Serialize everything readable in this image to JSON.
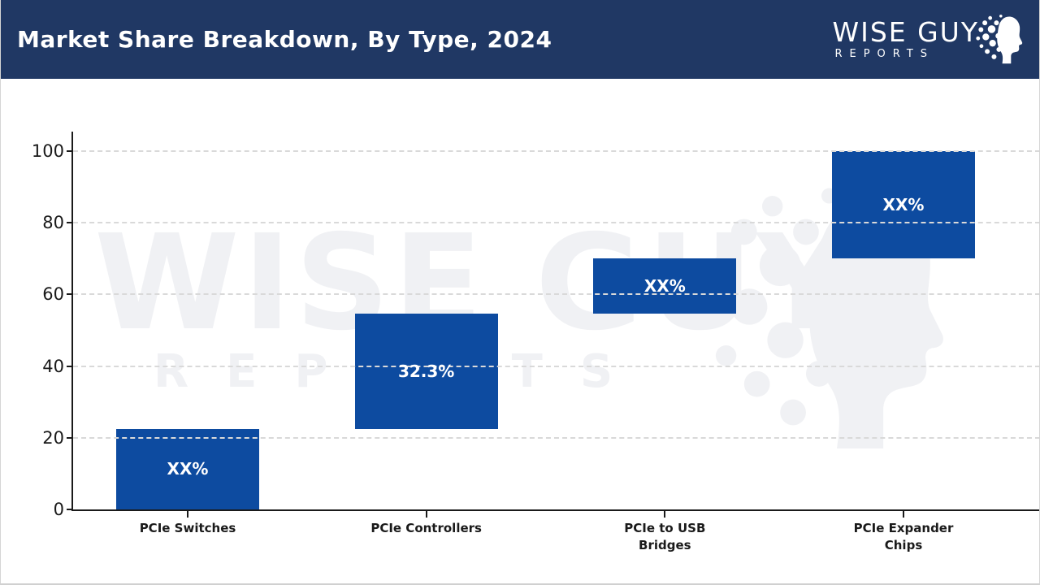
{
  "header": {
    "title": "Market Share Breakdown, By Type, 2024",
    "bg_color": "#203864",
    "logo_line1": "WISE GUY",
    "logo_line2": "REPORTS"
  },
  "watermark": {
    "line1": "WISE GUY",
    "line2": "REPORTS",
    "color": "#f0f1f4"
  },
  "chart_data": {
    "type": "bar",
    "subtype": "floating_segment_waterfall",
    "title": "Market Share Breakdown, By Type, 2024",
    "categories": [
      "PCIe Switches",
      "PCIe Controllers",
      "PCIe to USB\nBridges",
      "PCIe Expander\nChips"
    ],
    "segments": [
      {
        "category": "PCIe Switches",
        "start": 0,
        "end": 22.5,
        "label": "XX%"
      },
      {
        "category": "PCIe Controllers",
        "start": 22.4,
        "end": 54.7,
        "label": "32.3%"
      },
      {
        "category": "PCIe to USB Bridges",
        "start": 54.7,
        "end": 70.1,
        "label": "XX%"
      },
      {
        "category": "PCIe Expander Chips",
        "start": 70.1,
        "end": 100,
        "label": "XX%"
      }
    ],
    "ylim": [
      0,
      106
    ],
    "yticks": [
      0,
      20,
      40,
      60,
      80,
      100
    ],
    "grid": {
      "horizontal": true,
      "style": "dashed",
      "color": "#d9d9d9",
      "above_bars": true
    },
    "legend": "none",
    "bar_color": "#0d4ba0",
    "bar_label_color": "#ffffff",
    "axis_color": "#1a1a1a",
    "tick_label_color": "#1a1a1a"
  }
}
